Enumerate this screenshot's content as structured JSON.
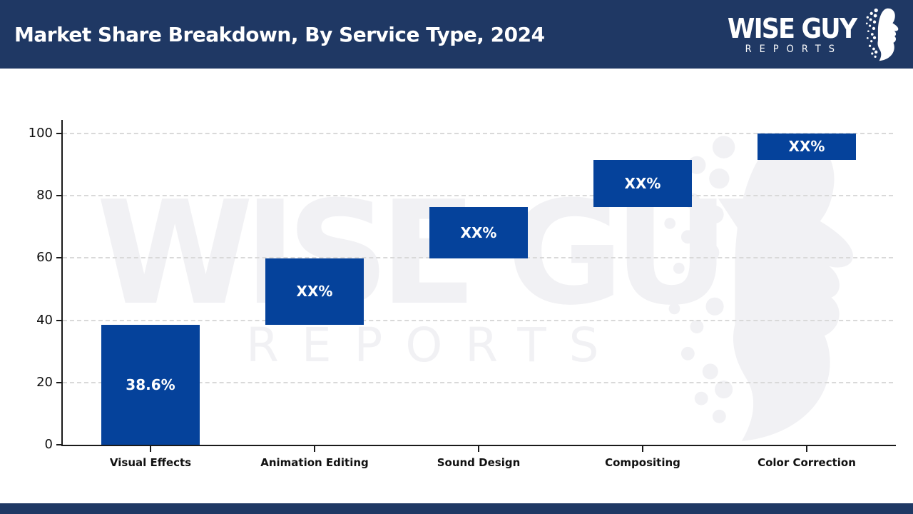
{
  "header": {
    "title": "Market Share Breakdown, By Service Type, 2024",
    "logo": {
      "line1": "WISE GUY",
      "line2": "REPORTS"
    }
  },
  "watermark": {
    "line1": "WISE GUY",
    "line2": "REPORTS"
  },
  "colors": {
    "header_bg": "#1F3864",
    "footer_bg": "#1F3864",
    "bar": "#05429B",
    "bar_label": "#FFFFFF",
    "grid": "#D9D9D9",
    "axis": "#1A1A1A",
    "watermark": "#F1F1F4"
  },
  "chart_data": {
    "type": "bar",
    "subtype": "waterfall",
    "title": "Market Share Breakdown, By Service Type, 2024",
    "categories": [
      "Visual Effects",
      "Animation Editing",
      "Sound Design",
      "Compositing",
      "Color Correction"
    ],
    "series": [
      {
        "name": "Market Share (%)",
        "segments": [
          {
            "category": "Visual Effects",
            "start": 0,
            "end": 38.6,
            "label": "38.6%"
          },
          {
            "category": "Animation Editing",
            "start": 38.6,
            "end": 59.8,
            "label": "XX%"
          },
          {
            "category": "Sound Design",
            "start": 59.8,
            "end": 76.3,
            "label": "XX%"
          },
          {
            "category": "Compositing",
            "start": 76.3,
            "end": 91.6,
            "label": "XX%"
          },
          {
            "category": "Color Correction",
            "start": 91.6,
            "end": 100,
            "label": "XX%"
          }
        ]
      }
    ],
    "xlabel": "",
    "ylabel": "",
    "ylim": [
      0,
      100
    ],
    "yticks": [
      0,
      20,
      40,
      60,
      80,
      100
    ],
    "grid": "horizontal-dashed",
    "legend_position": "none",
    "bar_label_note": "values above first bar are masked as XX% in source image"
  }
}
